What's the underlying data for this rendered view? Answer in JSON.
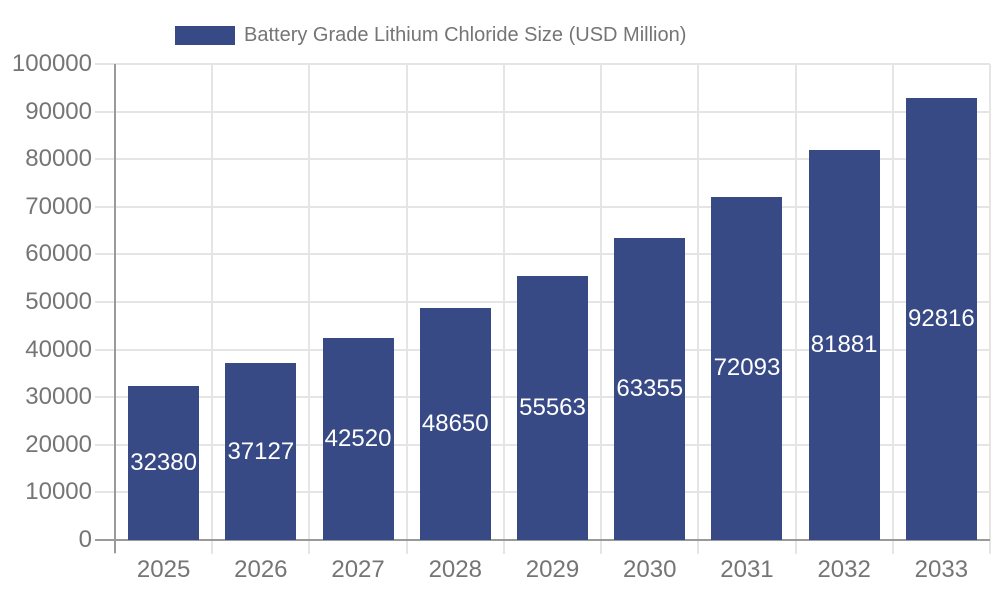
{
  "legend": {
    "label": "Battery Grade Lithium Chloride Size (USD Million)"
  },
  "colors": {
    "bar": "#384A85",
    "grid": "#e5e5e5",
    "axis": "#9a9a9a",
    "tick_text": "#757575",
    "value_text": "#ffffff",
    "background": "#ffffff"
  },
  "chart_data": {
    "type": "bar",
    "title": "Battery Grade Lithium Chloride Size (USD Million)",
    "categories": [
      "2025",
      "2026",
      "2027",
      "2028",
      "2029",
      "2030",
      "2031",
      "2032",
      "2033"
    ],
    "values": [
      32380,
      37127,
      42520,
      48650,
      55563,
      63355,
      72093,
      81881,
      92816
    ],
    "xlabel": "",
    "ylabel": "",
    "ylim": [
      0,
      100000
    ],
    "yticks": [
      0,
      10000,
      20000,
      30000,
      40000,
      50000,
      60000,
      70000,
      80000,
      90000,
      100000
    ],
    "grid": true,
    "legend_position": "top",
    "value_label_position": "inside-center"
  }
}
